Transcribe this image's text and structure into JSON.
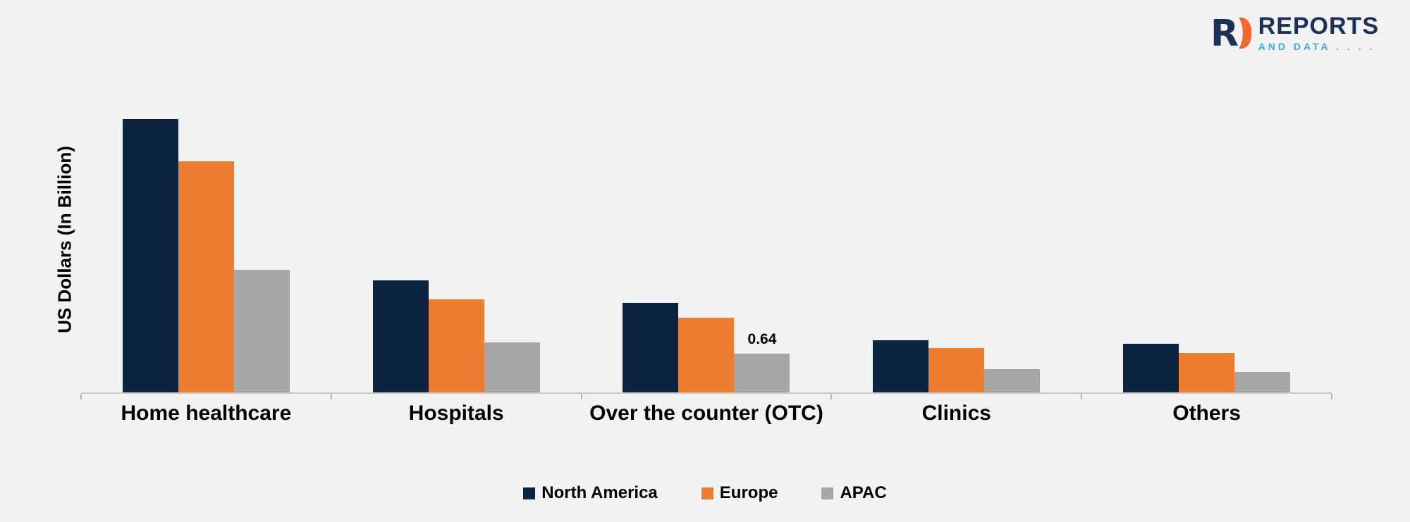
{
  "logo": {
    "mark_letter": "R",
    "brand_top": "REPORTS",
    "brand_bottom": "AND DATA . . . .",
    "navy": "#1b3158",
    "orange": "#f26a31",
    "blue": "#45a7db"
  },
  "chart_data": {
    "type": "bar",
    "title": "",
    "xlabel": "",
    "ylabel": "US Dollars (In Billion)",
    "categories": [
      "Home healthcare",
      "Hospitals",
      "Over the counter (OTC)",
      "Clinics",
      "Others"
    ],
    "series": [
      {
        "name": "North America",
        "color": "#0d2440",
        "values": [
          4.51,
          1.85,
          1.48,
          0.86,
          0.8
        ]
      },
      {
        "name": "Europe",
        "color": "#ed7d31",
        "values": [
          3.81,
          1.53,
          1.23,
          0.73,
          0.65
        ]
      },
      {
        "name": "APAC",
        "color": "#a6a6a6",
        "values": [
          2.03,
          0.83,
          0.64,
          0.38,
          0.34
        ]
      }
    ],
    "ylim": [
      0,
      5.35
    ],
    "grid": false,
    "legend_position": "bottom",
    "annotations": [
      {
        "category_index": 2,
        "series_index": 2,
        "text": "0.64"
      }
    ],
    "background": "#f2f2f2",
    "axis_color": "#c9c9c9"
  }
}
